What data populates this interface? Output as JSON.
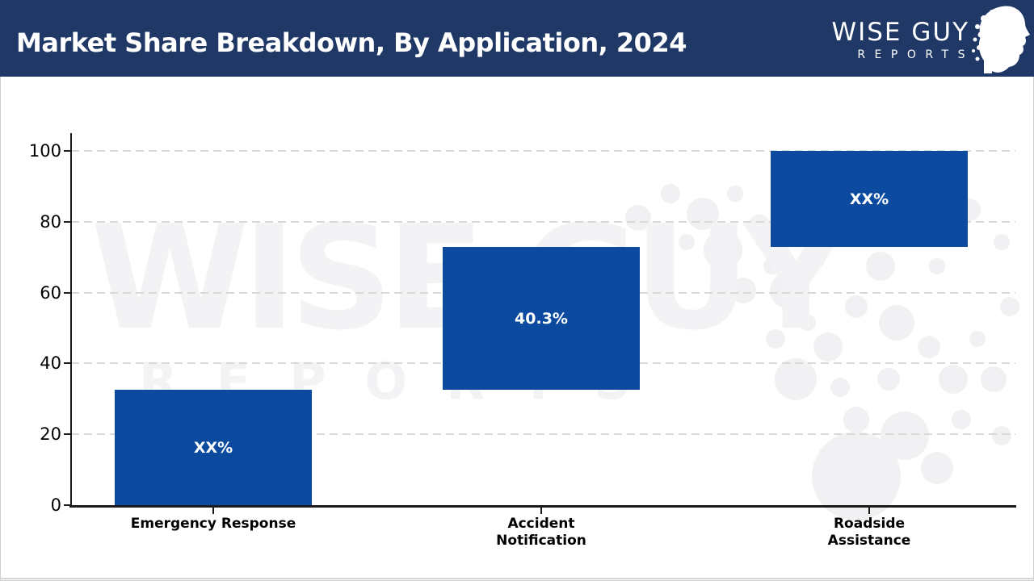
{
  "header": {
    "title": "Market Share Breakdown, By Application, 2024",
    "logo_line1": "WISE GUY",
    "logo_line2": "REPORTS",
    "bg_color": "#1f3866",
    "text_color": "#ffffff"
  },
  "watermark": {
    "line1": "WISE GUY",
    "line2": "REPORTS"
  },
  "chart_data": {
    "type": "bar",
    "variant": "floating-stacked-percentage",
    "title": "Market Share Breakdown, By Application, 2024",
    "categories": [
      "Emergency Response",
      "Accident Notification",
      "Roadside Assistance"
    ],
    "xtick_lines": [
      [
        "Emergency Response"
      ],
      [
        "Accident",
        "Notification"
      ],
      [
        "Roadside",
        "Assistance"
      ]
    ],
    "segments": [
      {
        "category": "Emergency Response",
        "start": 0,
        "end": 32.5,
        "label": "XX%"
      },
      {
        "category": "Accident Notification",
        "start": 32.5,
        "end": 72.8,
        "value": 40.3,
        "label": "40.3%"
      },
      {
        "category": "Roadside Assistance",
        "start": 72.8,
        "end": 100,
        "label": "XX%"
      }
    ],
    "yticks": [
      0,
      20,
      40,
      60,
      80,
      100
    ],
    "ylim": [
      0,
      105
    ],
    "grid": "horizontal-dashed",
    "legend": "none",
    "bar_color": "#0b4a9e",
    "bar_label_color": "#ffffff",
    "axis_color": "#1a1a1a",
    "gridline_color": "#d9d9d9"
  }
}
